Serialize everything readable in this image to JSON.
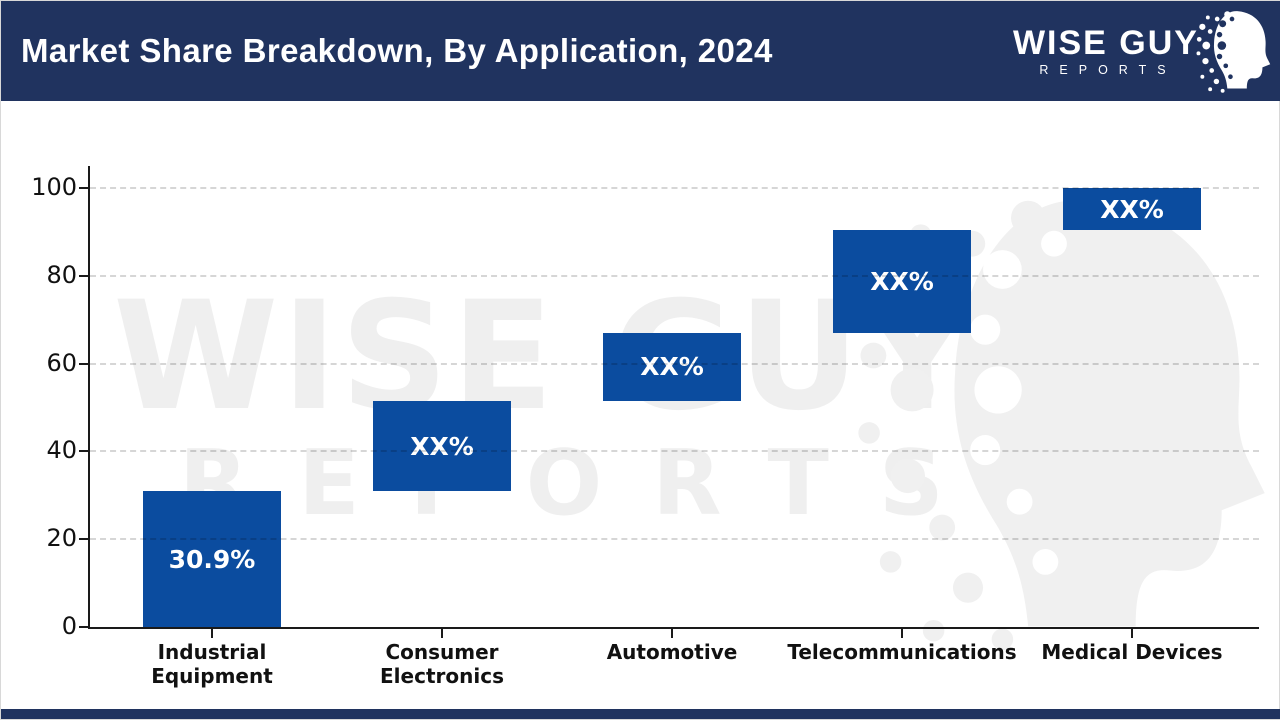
{
  "header": {
    "title": "Market Share Breakdown, By Application, 2024",
    "logo": {
      "line1": "WISE GUY",
      "line2": "REPORTS"
    }
  },
  "watermark": {
    "line1": "WISE GUY",
    "line2": "REPORTS"
  },
  "colors": {
    "header_bg": "#20335f",
    "bar": "#0b4c9f",
    "grid": "rgba(0,0,0,0.16)",
    "axis": "#1a1a1a"
  },
  "chart_data": {
    "type": "bar",
    "subtype": "waterfall",
    "title": "Market Share Breakdown, By Application, 2024",
    "categories": [
      "Industrial Equipment",
      "Consumer Electronics",
      "Automotive",
      "Telecommunications",
      "Medical Devices"
    ],
    "category_tick_labels": [
      "Industrial\nEquipment",
      "Consumer\nElectronics",
      "Automotive",
      "Telecommunications",
      "Medical Devices"
    ],
    "segments": [
      {
        "category": "Industrial Equipment",
        "start": 0,
        "end": 30.9,
        "label": "30.9%"
      },
      {
        "category": "Consumer Electronics",
        "start": 30.9,
        "end": 51.5,
        "label": "XX%"
      },
      {
        "category": "Automotive",
        "start": 51.5,
        "end": 67.0,
        "label": "XX%"
      },
      {
        "category": "Telecommunications",
        "start": 67.0,
        "end": 90.4,
        "label": "XX%"
      },
      {
        "category": "Medical Devices",
        "start": 90.4,
        "end": 100,
        "label": "XX%"
      }
    ],
    "ylim": [
      0,
      100
    ],
    "yticks": [
      0,
      20,
      40,
      60,
      80,
      100
    ],
    "xlabel": "",
    "ylabel": "",
    "grid": "horizontal-dashed-over-bars",
    "legend": "none",
    "bar_color": "#0b4c9f"
  }
}
